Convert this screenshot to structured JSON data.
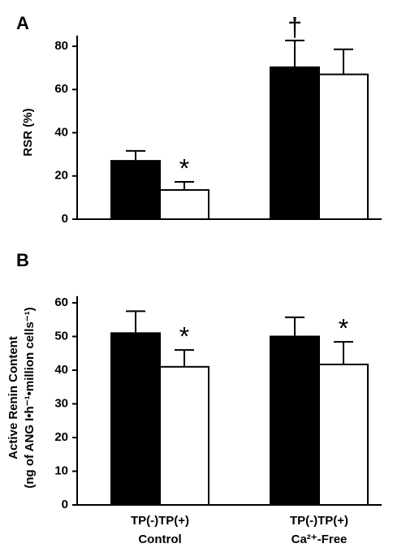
{
  "chart_data": [
    {
      "type": "bar",
      "panel": "A",
      "ylabel": [
        "RSR (%)"
      ],
      "ylim": [
        0,
        85
      ],
      "yticks": [
        0,
        20,
        40,
        60,
        80
      ],
      "series": [
        {
          "color": "#000000",
          "values": [
            27,
            70.3
          ],
          "errors": [
            4.6,
            12.4
          ]
        },
        {
          "color": "#ffffff",
          "values": [
            13.5,
            67
          ],
          "errors": [
            3.8,
            11.6
          ]
        }
      ],
      "annotations": [
        {
          "text": "*",
          "series": 1,
          "index": 0
        },
        {
          "text": "†",
          "series": 0,
          "index": 1
        }
      ]
    },
    {
      "type": "bar",
      "panel": "B",
      "ylabel": [
        "Active Renin Content",
        "(ng of ANG I•h⁻¹•million cells⁻¹)"
      ],
      "ylim": [
        0,
        62
      ],
      "yticks": [
        0,
        10,
        20,
        30,
        40,
        50,
        60
      ],
      "categories": [
        [
          "TP(-)TP(+)",
          "Control"
        ],
        [
          "TP(-)TP(+)",
          "Ca²⁺-Free"
        ]
      ],
      "series": [
        {
          "color": "#000000",
          "values": [
            51,
            50
          ],
          "errors": [
            6.5,
            5.7
          ]
        },
        {
          "color": "#ffffff",
          "values": [
            41,
            41.7
          ],
          "errors": [
            5,
            6.7
          ]
        }
      ],
      "annotations": [
        {
          "text": "*",
          "series": 1,
          "index": 0
        },
        {
          "text": "*",
          "series": 1,
          "index": 1
        }
      ]
    }
  ]
}
